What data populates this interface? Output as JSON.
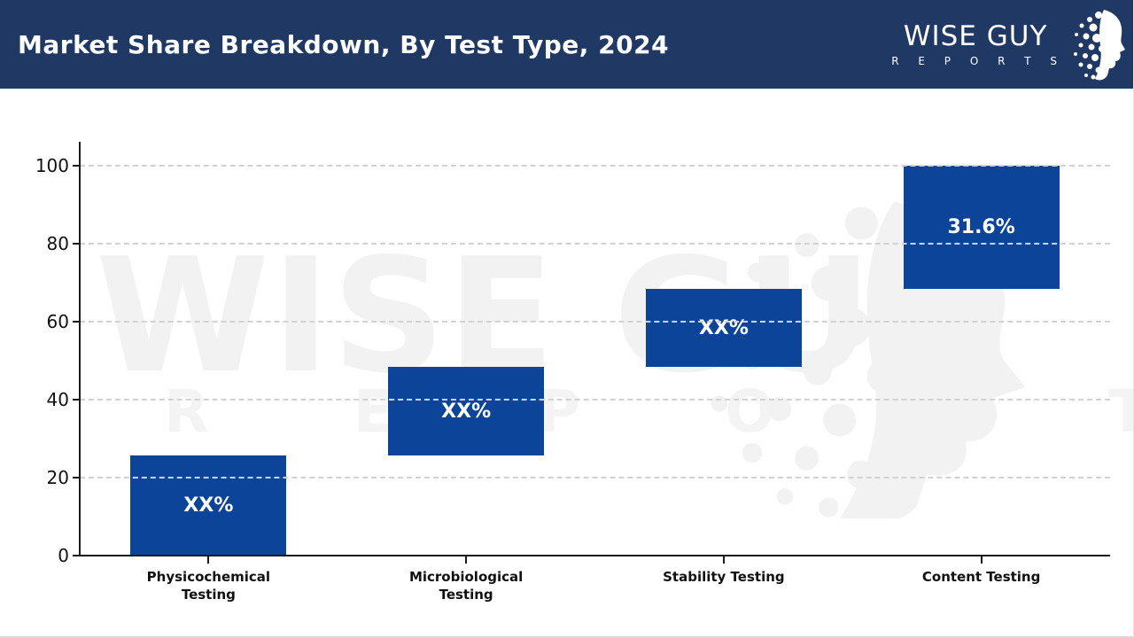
{
  "header": {
    "title": "Market Share Breakdown, By Test Type, 2024",
    "logo": {
      "wordmark": "WISE GUY",
      "subtitle": "R E P O R T S"
    }
  },
  "watermark": {
    "line1": "WISE GUY",
    "line2": "R E P O R T S"
  },
  "chart_data": {
    "type": "bar",
    "variant": "waterfall",
    "title": "Market Share Breakdown, By Test Type, 2024",
    "categories": [
      "Physicochemical Testing",
      "Microbiological Testing",
      "Stability Testing",
      "Content Testing"
    ],
    "category_lines": [
      [
        "Physicochemical",
        "Testing"
      ],
      [
        "Microbiological",
        "Testing"
      ],
      [
        "Stability Testing"
      ],
      [
        "Content Testing"
      ]
    ],
    "segments": [
      {
        "category": "Physicochemical Testing",
        "start": 0,
        "end": 25.6,
        "value": 25.6,
        "value_label": "XX%"
      },
      {
        "category": "Microbiological Testing",
        "start": 25.6,
        "end": 48.4,
        "value": 22.8,
        "value_label": "XX%"
      },
      {
        "category": "Stability Testing",
        "start": 48.4,
        "end": 68.4,
        "value": 20.0,
        "value_label": "XX%"
      },
      {
        "category": "Content Testing",
        "start": 68.4,
        "end": 100,
        "value": 31.6,
        "value_label": "31.6%"
      }
    ],
    "xlabel": "",
    "ylabel": "",
    "ylim": [
      0,
      100
    ],
    "yticks": [
      0,
      20,
      40,
      60,
      80,
      100
    ],
    "grid": "horizontal-dashed",
    "legend": null,
    "bar_color": "#0b4499",
    "header_color": "#203864",
    "label_color": "#ffffff"
  }
}
